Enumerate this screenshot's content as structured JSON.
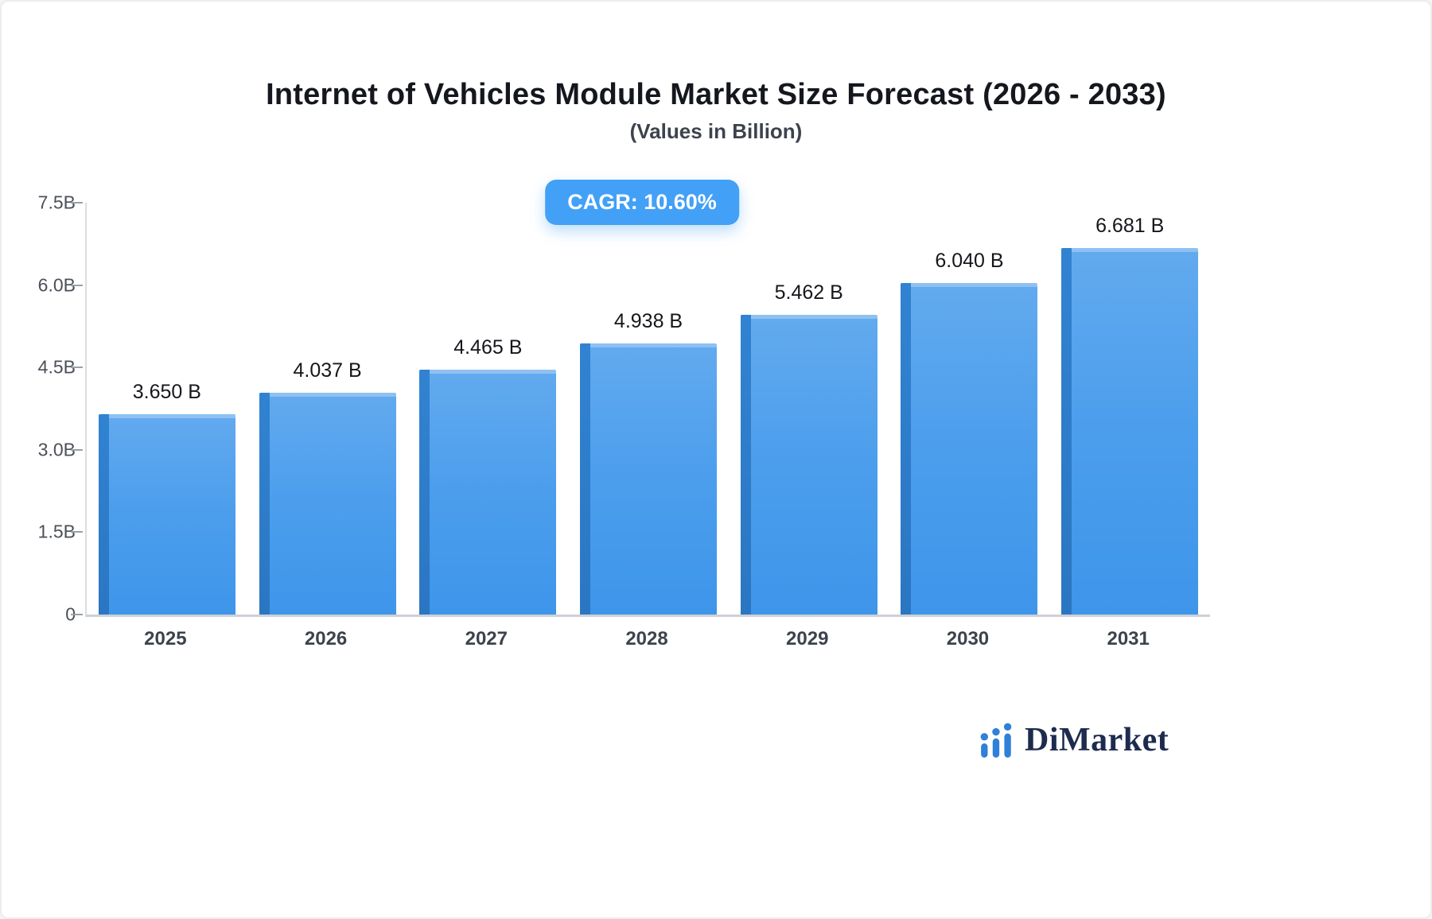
{
  "title": "Internet of Vehicles Module Market Size Forecast (2026 - 2033)",
  "subtitle": "(Values in Billion)",
  "cagr_label": "CAGR: 10.60%",
  "brand": {
    "name": "DiMarket",
    "icon": "bar-chart-dots-icon"
  },
  "colors": {
    "bar_main": "#4d9fed",
    "bar_edge": "#2b76c2",
    "badge_bg": "#42a0f6",
    "brand_text": "#1d2b4f",
    "brand_icon": "#2f80d9"
  },
  "chart_data": {
    "type": "bar",
    "categories": [
      "2025",
      "2026",
      "2027",
      "2028",
      "2029",
      "2030",
      "2031"
    ],
    "values": [
      3.65,
      4.037,
      4.465,
      4.938,
      5.462,
      6.04,
      6.681
    ],
    "bar_labels": [
      "3.650 B",
      "4.037 B",
      "4.465 B",
      "4.938 B",
      "5.462 B",
      "6.040 B",
      "6.681 B"
    ],
    "title": "Internet of Vehicles Module Market Size Forecast (2026 - 2033)",
    "xlabel": "",
    "ylabel": "",
    "ylim": [
      0,
      7.5
    ],
    "yticks_top_to_bottom": [
      "7.5B",
      "6.0B",
      "4.5B",
      "3.0B",
      "1.5B",
      "0"
    ],
    "grid": false,
    "legend": false
  }
}
